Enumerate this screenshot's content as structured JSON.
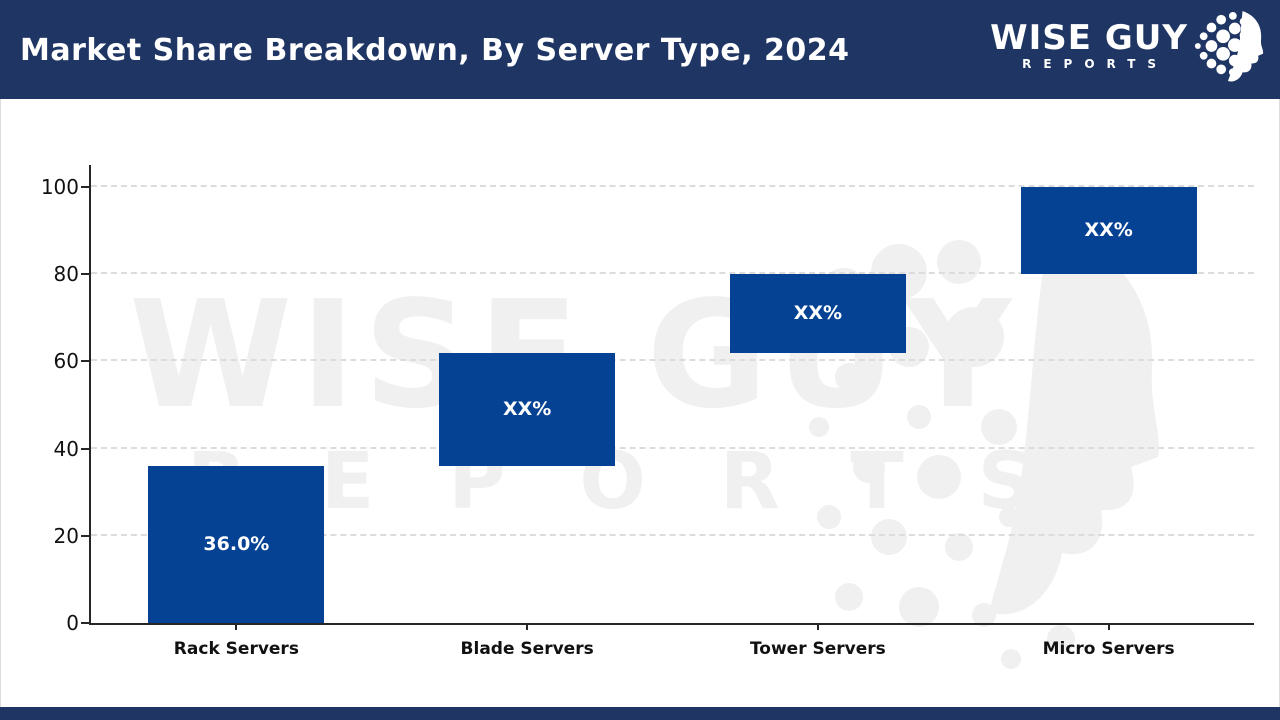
{
  "header": {
    "title": "Market Share Breakdown, By Server Type, 2024"
  },
  "logo": {
    "line1": "WISE GUY",
    "line2": "REPORTS"
  },
  "watermark": {
    "line1": "WISE GUY",
    "line2": "REPORTS"
  },
  "chart_data": {
    "type": "bar",
    "subtype": "waterfall",
    "title": "Market Share Breakdown, By Server Type, 2024",
    "categories": [
      "Rack Servers",
      "Blade Servers",
      "Tower Servers",
      "Micro Servers"
    ],
    "segments": [
      {
        "category": "Rack Servers",
        "start": 0,
        "end": 36,
        "label": "36.0%"
      },
      {
        "category": "Blade Servers",
        "start": 36,
        "end": 62,
        "label": "XX%"
      },
      {
        "category": "Tower Servers",
        "start": 62,
        "end": 80,
        "label": "XX%"
      },
      {
        "category": "Micro Servers",
        "start": 80,
        "end": 100,
        "label": "XX%"
      }
    ],
    "yticks": [
      0,
      20,
      40,
      60,
      80,
      100
    ],
    "ylim": [
      0,
      105
    ],
    "xlabel": "",
    "ylabel": "",
    "legend": "none",
    "grid": "horizontal-dashed"
  },
  "colors": {
    "header_bg": "#1f3664",
    "footer_bg": "#1f3664",
    "bar": "#064294",
    "grid": "#dcdcdc",
    "axis": "#262626",
    "watermark": "#f0f0f0",
    "title_text": "#ffffff",
    "bar_label_text": "#ffffff"
  }
}
